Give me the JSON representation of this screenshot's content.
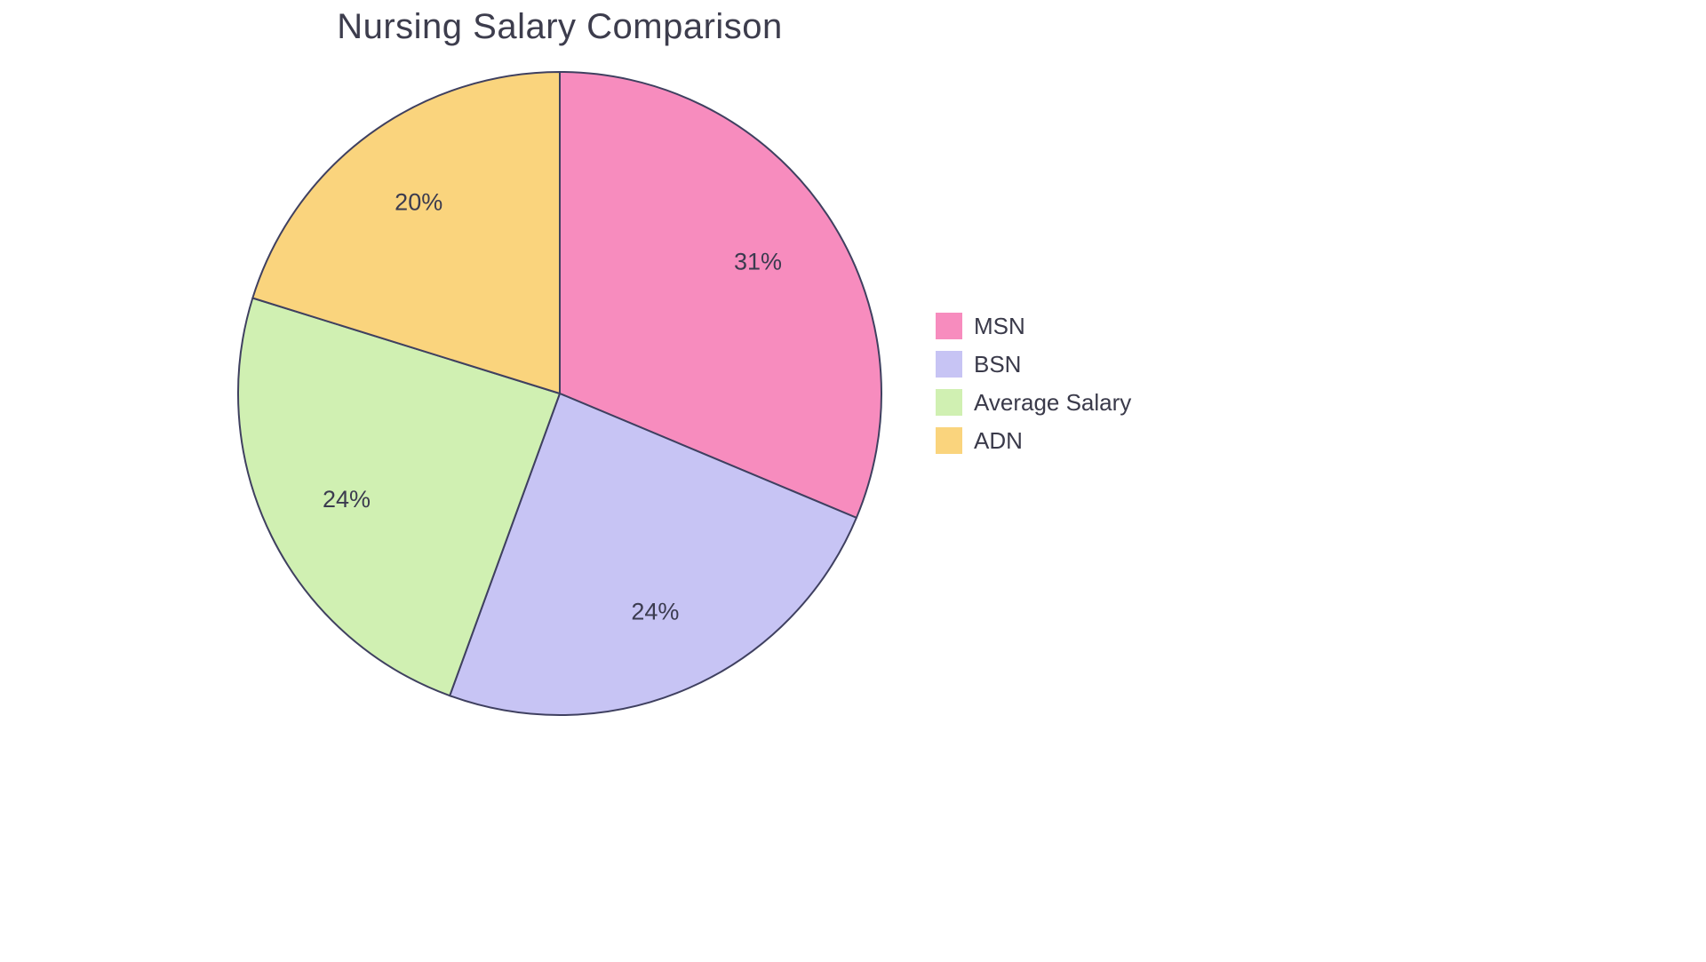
{
  "page": {
    "background_color": "#FFFFFF"
  },
  "chart_data": {
    "type": "pie",
    "title": "Nursing Salary Comparison",
    "labels": [
      "MSN",
      "BSN",
      "Average Salary",
      "ADN"
    ],
    "values": [
      31,
      24,
      24,
      20
    ],
    "percent_labels": [
      "31%",
      "24%",
      "24%",
      "20%"
    ],
    "colors": [
      "#F78CBE",
      "#C7C4F4",
      "#D0F0B2",
      "#FAD47D"
    ],
    "slice_border_color": "#3F4060",
    "slice_label_color": "#3B3B4F",
    "title_color": "#3D3D4D",
    "start_angle_deg": 0,
    "direction": "clockwise",
    "legend": {
      "position": "right",
      "items": [
        "MSN",
        "BSN",
        "Average Salary",
        "ADN"
      ]
    }
  }
}
